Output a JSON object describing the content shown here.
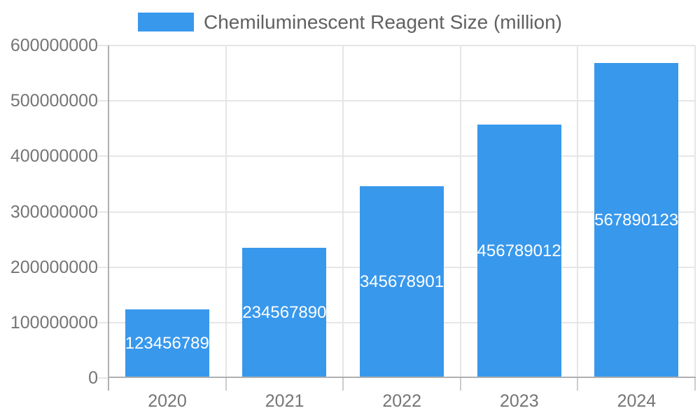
{
  "chart_data": {
    "type": "bar",
    "title": "Chemiluminescent Reagent Size (million)",
    "legend": {
      "position": "top",
      "entries": [
        "Chemiluminescent Reagent Size (million)"
      ]
    },
    "categories": [
      "2020",
      "2021",
      "2022",
      "2023",
      "2024"
    ],
    "series": [
      {
        "name": "Chemiluminescent Reagent Size (million)",
        "values": [
          123456789,
          234567890,
          345678901,
          456789012,
          567890123
        ]
      }
    ],
    "bar_value_labels": [
      "123456789",
      "234567890",
      "345678901",
      "456789012",
      "567890123"
    ],
    "xlabel": "",
    "ylabel": "",
    "ylim": [
      0,
      600000000
    ],
    "y_tick_step": 100000000,
    "y_tick_labels": [
      "0",
      "100000000",
      "200000000",
      "300000000",
      "400000000",
      "500000000",
      "600000000"
    ],
    "grid": "on"
  },
  "colors": {
    "bar": "#3898ec",
    "bar_label_text": "#ffffff",
    "gridline": "#e6e6e6",
    "axis_line": "#b0b0b0",
    "x_tick": "#cccccc",
    "axis_label_text": "#757575",
    "legend_text": "#616161",
    "background": "#ffffff"
  }
}
